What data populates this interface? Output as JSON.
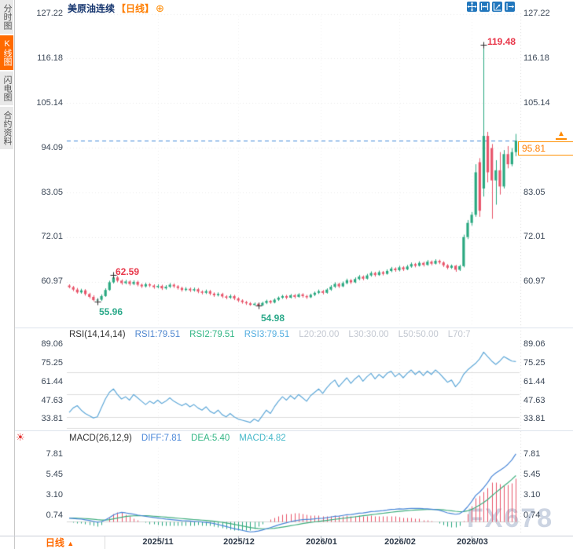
{
  "sidebar": {
    "tabs": [
      {
        "label": "分时图",
        "active": false
      },
      {
        "label": "K线图",
        "active": true
      },
      {
        "label": "闪电图",
        "active": false
      },
      {
        "label": "合约资料",
        "active": false
      }
    ]
  },
  "main_chart": {
    "title": "美原油连续",
    "period_tag": "【日线】"
  },
  "icons": {
    "circle_plus": "⊕",
    "up_triangle": "▲",
    "sun": "☀"
  },
  "last_price": "95.81",
  "watermark": "FX678",
  "bottom_bar": {
    "period_label": "日线"
  },
  "rsi_header": {
    "name": "RSI(14,14,14)",
    "rsi1": "RSI1:79.51",
    "rsi2": "RSI2:79.51",
    "rsi3": "RSI3:79.51",
    "l20": "L20:20.00",
    "l30": "L30:30.00",
    "l50": "L50:50.00",
    "l70": "L70:7"
  },
  "macd_header": {
    "name": "MACD(26,12,9)",
    "diff": "DIFF:7.81",
    "dea": "DEA:5.40",
    "macd": "MACD:4.82"
  },
  "chart_data": {
    "type": "candlestick",
    "symbol": "美原油连续",
    "period": "日线",
    "price_ticks_text": [
      "127.22",
      "116.18",
      "105.14",
      "94.09",
      "83.05",
      "72.01",
      "60.97"
    ],
    "rsi_ticks_text": [
      "89.06",
      "75.25",
      "61.44",
      "47.63",
      "33.81"
    ],
    "macd_ticks_text": [
      "7.81",
      "5.45",
      "3.10",
      "0.74"
    ],
    "months": [
      {
        "label": "2025/11",
        "index": 22
      },
      {
        "label": "2025/12",
        "index": 42
      },
      {
        "label": "2026/01",
        "index": 62.5
      },
      {
        "label": "2026/02",
        "index": 82
      },
      {
        "label": "2026/03",
        "index": 100
      }
    ],
    "last_price": 95.81,
    "annotated_points": [
      {
        "index": 7,
        "type": "low",
        "value": 55.96,
        "label": "55.96"
      },
      {
        "index": 11,
        "type": "high",
        "value": 62.59,
        "label": "62.59"
      },
      {
        "index": 47,
        "type": "low",
        "value": 54.98,
        "label": "54.98"
      },
      {
        "index": 103,
        "type": "high",
        "value": 119.48,
        "label": "119.48"
      }
    ],
    "candles_ohlc_order": "open,close,low,high",
    "candles": [
      [
        60.0,
        59.6,
        59.3,
        60.3
      ],
      [
        59.6,
        59.0,
        58.6,
        59.9
      ],
      [
        59.0,
        58.3,
        58.0,
        59.4
      ],
      [
        58.3,
        58.8,
        58.0,
        59.2
      ],
      [
        58.8,
        57.9,
        57.5,
        59.1
      ],
      [
        57.9,
        57.2,
        56.8,
        58.2
      ],
      [
        57.2,
        56.4,
        56.1,
        57.6
      ],
      [
        56.4,
        56.5,
        55.96,
        56.9
      ],
      [
        56.5,
        57.4,
        56.2,
        57.8
      ],
      [
        57.4,
        58.9,
        57.2,
        59.3
      ],
      [
        58.9,
        60.8,
        58.7,
        61.2
      ],
      [
        60.8,
        62.0,
        60.5,
        62.59
      ],
      [
        62.0,
        61.2,
        60.8,
        62.4
      ],
      [
        61.2,
        60.6,
        60.2,
        61.5
      ],
      [
        60.6,
        61.0,
        60.3,
        61.4
      ],
      [
        61.0,
        60.4,
        60.0,
        61.3
      ],
      [
        60.4,
        60.9,
        60.1,
        61.3
      ],
      [
        60.9,
        60.2,
        59.8,
        61.2
      ],
      [
        60.2,
        59.8,
        59.4,
        60.5
      ],
      [
        59.8,
        60.3,
        59.5,
        60.7
      ],
      [
        60.3,
        60.0,
        59.6,
        60.6
      ],
      [
        60.0,
        59.6,
        59.2,
        60.3
      ],
      [
        59.6,
        59.9,
        59.3,
        60.3
      ],
      [
        59.9,
        59.3,
        58.9,
        60.2
      ],
      [
        59.3,
        59.7,
        59.0,
        60.1
      ],
      [
        59.7,
        60.2,
        59.4,
        60.6
      ],
      [
        60.2,
        59.8,
        59.4,
        60.5
      ],
      [
        59.8,
        59.4,
        59.0,
        60.1
      ],
      [
        59.4,
        58.9,
        58.5,
        59.7
      ],
      [
        58.9,
        59.2,
        58.6,
        59.6
      ],
      [
        59.2,
        58.8,
        58.4,
        59.5
      ],
      [
        58.8,
        59.1,
        58.5,
        59.5
      ],
      [
        59.1,
        58.5,
        58.1,
        59.4
      ],
      [
        58.5,
        58.2,
        57.8,
        58.8
      ],
      [
        58.2,
        58.6,
        57.9,
        59.0
      ],
      [
        58.6,
        58.0,
        57.6,
        58.9
      ],
      [
        58.0,
        57.6,
        57.2,
        58.3
      ],
      [
        57.6,
        57.9,
        57.3,
        58.3
      ],
      [
        57.9,
        57.3,
        56.9,
        58.2
      ],
      [
        57.3,
        57.0,
        56.6,
        57.6
      ],
      [
        57.0,
        57.4,
        56.7,
        57.8
      ],
      [
        57.4,
        56.8,
        56.4,
        57.7
      ],
      [
        56.8,
        56.3,
        55.9,
        57.1
      ],
      [
        56.3,
        55.9,
        55.5,
        56.6
      ],
      [
        55.9,
        55.6,
        55.2,
        56.2
      ],
      [
        55.6,
        55.2,
        55.0,
        55.9
      ],
      [
        55.2,
        55.5,
        55.0,
        55.8
      ],
      [
        55.5,
        55.1,
        54.98,
        55.8
      ],
      [
        55.1,
        55.7,
        55.0,
        56.0
      ],
      [
        55.7,
        56.2,
        55.4,
        56.5
      ],
      [
        56.2,
        55.8,
        55.5,
        56.4
      ],
      [
        55.8,
        56.5,
        55.6,
        56.8
      ],
      [
        56.5,
        57.0,
        56.2,
        57.3
      ],
      [
        57.0,
        57.4,
        56.7,
        57.7
      ],
      [
        57.4,
        57.0,
        56.6,
        57.7
      ],
      [
        57.0,
        57.6,
        56.8,
        57.9
      ],
      [
        57.6,
        57.2,
        56.8,
        57.9
      ],
      [
        57.2,
        57.8,
        57.0,
        58.1
      ],
      [
        57.8,
        57.4,
        57.0,
        58.1
      ],
      [
        57.4,
        57.1,
        56.7,
        57.7
      ],
      [
        57.1,
        57.7,
        56.9,
        58.0
      ],
      [
        57.7,
        58.2,
        57.4,
        58.5
      ],
      [
        58.2,
        58.6,
        57.9,
        59.0
      ],
      [
        58.6,
        58.2,
        57.8,
        58.9
      ],
      [
        58.2,
        59.0,
        58.0,
        59.3
      ],
      [
        59.0,
        59.7,
        58.7,
        60.1
      ],
      [
        59.7,
        60.4,
        59.4,
        60.8
      ],
      [
        60.4,
        59.8,
        59.4,
        60.7
      ],
      [
        59.8,
        60.6,
        59.6,
        61.0
      ],
      [
        60.6,
        61.3,
        60.3,
        61.7
      ],
      [
        61.3,
        60.8,
        60.4,
        61.6
      ],
      [
        60.8,
        61.6,
        60.6,
        62.0
      ],
      [
        61.6,
        62.2,
        61.3,
        62.6
      ],
      [
        62.2,
        61.7,
        61.3,
        62.5
      ],
      [
        61.7,
        62.5,
        61.5,
        62.9
      ],
      [
        62.5,
        63.1,
        62.2,
        63.5
      ],
      [
        63.1,
        62.6,
        62.2,
        63.4
      ],
      [
        62.6,
        63.3,
        62.4,
        63.7
      ],
      [
        63.3,
        62.9,
        62.5,
        63.6
      ],
      [
        62.9,
        63.6,
        62.7,
        64.0
      ],
      [
        63.6,
        64.2,
        63.3,
        64.6
      ],
      [
        64.2,
        63.8,
        63.4,
        64.5
      ],
      [
        63.8,
        64.5,
        63.5,
        64.9
      ],
      [
        64.5,
        64.0,
        63.6,
        64.8
      ],
      [
        64.0,
        64.7,
        63.8,
        65.1
      ],
      [
        64.7,
        65.3,
        64.4,
        65.7
      ],
      [
        65.3,
        64.9,
        64.5,
        65.6
      ],
      [
        64.9,
        65.6,
        64.7,
        66.0
      ],
      [
        65.6,
        65.1,
        64.7,
        65.9
      ],
      [
        65.1,
        65.9,
        64.9,
        66.3
      ],
      [
        65.9,
        65.4,
        65.0,
        66.2
      ],
      [
        65.4,
        66.1,
        65.2,
        66.5
      ],
      [
        66.1,
        65.7,
        65.3,
        66.4
      ],
      [
        65.7,
        65.0,
        64.6,
        66.0
      ],
      [
        65.0,
        64.4,
        64.0,
        65.3
      ],
      [
        64.4,
        64.9,
        64.1,
        65.2
      ],
      [
        64.9,
        63.9,
        63.4,
        65.1
      ],
      [
        63.9,
        64.8,
        63.6,
        65.1
      ],
      [
        64.8,
        72.0,
        64.5,
        72.6
      ],
      [
        72.0,
        75.5,
        71.5,
        76.2
      ],
      [
        75.5,
        77.5,
        74.8,
        78.2
      ],
      [
        77.5,
        88.0,
        77.0,
        90.0
      ],
      [
        90.5,
        78.5,
        77.0,
        91.5
      ],
      [
        84.0,
        97.0,
        82.0,
        119.48
      ],
      [
        97.0,
        88.0,
        85.5,
        98.0
      ],
      [
        94.0,
        86.0,
        76.5,
        95.0
      ],
      [
        86.0,
        88.5,
        80.0,
        91.0
      ],
      [
        88.5,
        84.5,
        82.5,
        93.0
      ],
      [
        84.5,
        92.5,
        84.0,
        93.5
      ],
      [
        92.5,
        90.0,
        89.0,
        94.5
      ],
      [
        90.0,
        93.0,
        89.5,
        94.0
      ],
      [
        93.0,
        95.81,
        92.0,
        97.5
      ]
    ],
    "rsi": {
      "params": "14,14,14",
      "rsi1": 79.51,
      "rsi2": 79.51,
      "rsi3": 79.51,
      "levels": [
        70,
        50,
        30,
        20
      ],
      "series": [
        34,
        38,
        40,
        36,
        33,
        31,
        29,
        30,
        38,
        46,
        52,
        55,
        50,
        46,
        48,
        45,
        50,
        47,
        44,
        41,
        44,
        42,
        45,
        42,
        44,
        47,
        44,
        42,
        40,
        42,
        39,
        41,
        38,
        36,
        39,
        35,
        33,
        36,
        32,
        30,
        33,
        30,
        28,
        27,
        26,
        25,
        28,
        26,
        31,
        36,
        33,
        39,
        44,
        48,
        45,
        49,
        46,
        50,
        47,
        44,
        49,
        52,
        55,
        51,
        56,
        60,
        63,
        57,
        61,
        65,
        60,
        64,
        67,
        62,
        66,
        69,
        64,
        68,
        65,
        69,
        71,
        66,
        69,
        65,
        69,
        72,
        68,
        71,
        67,
        71,
        68,
        72,
        69,
        65,
        61,
        63,
        57,
        61,
        68,
        72,
        75,
        78,
        82,
        88,
        84,
        80,
        77,
        80,
        84,
        82,
        80,
        79.5
      ]
    },
    "macd": {
      "params": "26,12,9",
      "diff": 7.81,
      "dea": 5.4,
      "macd": 4.82,
      "diff_series": [
        0.4,
        0.35,
        0.3,
        0.28,
        0.2,
        0.12,
        0.02,
        -0.08,
        -0.02,
        0.18,
        0.45,
        0.75,
        0.95,
        1.05,
        1.0,
        0.92,
        0.85,
        0.75,
        0.68,
        0.6,
        0.52,
        0.46,
        0.4,
        0.34,
        0.28,
        0.24,
        0.2,
        0.15,
        0.1,
        0.08,
        0.05,
        0.02,
        0.0,
        -0.05,
        -0.1,
        -0.16,
        -0.24,
        -0.34,
        -0.46,
        -0.58,
        -0.7,
        -0.82,
        -0.92,
        -1.02,
        -1.12,
        -1.2,
        -1.16,
        -1.1,
        -0.98,
        -0.84,
        -0.7,
        -0.55,
        -0.4,
        -0.26,
        -0.14,
        -0.02,
        0.08,
        0.16,
        0.22,
        0.24,
        0.26,
        0.3,
        0.36,
        0.38,
        0.44,
        0.52,
        0.6,
        0.62,
        0.7,
        0.78,
        0.8,
        0.88,
        0.96,
        0.98,
        1.06,
        1.14,
        1.16,
        1.22,
        1.26,
        1.32,
        1.4,
        1.42,
        1.46,
        1.44,
        1.48,
        1.52,
        1.5,
        1.52,
        1.48,
        1.46,
        1.42,
        1.38,
        1.3,
        1.16,
        1.0,
        0.92,
        0.84,
        0.9,
        1.2,
        1.7,
        2.3,
        3.0,
        3.4,
        3.9,
        4.5,
        5.2,
        5.6,
        5.9,
        6.2,
        6.6,
        7.1,
        7.81
      ]
    },
    "colors": {
      "up": "#2aa880",
      "down": "#e8546a",
      "rsi_line": "#5fa8d8",
      "diff_line": "#4a87d8",
      "dea_line": "#3fae7e",
      "dashed_price_line": "#3d87d8",
      "accent": "#ff7e00",
      "icon_blue": "#2277bd"
    }
  }
}
